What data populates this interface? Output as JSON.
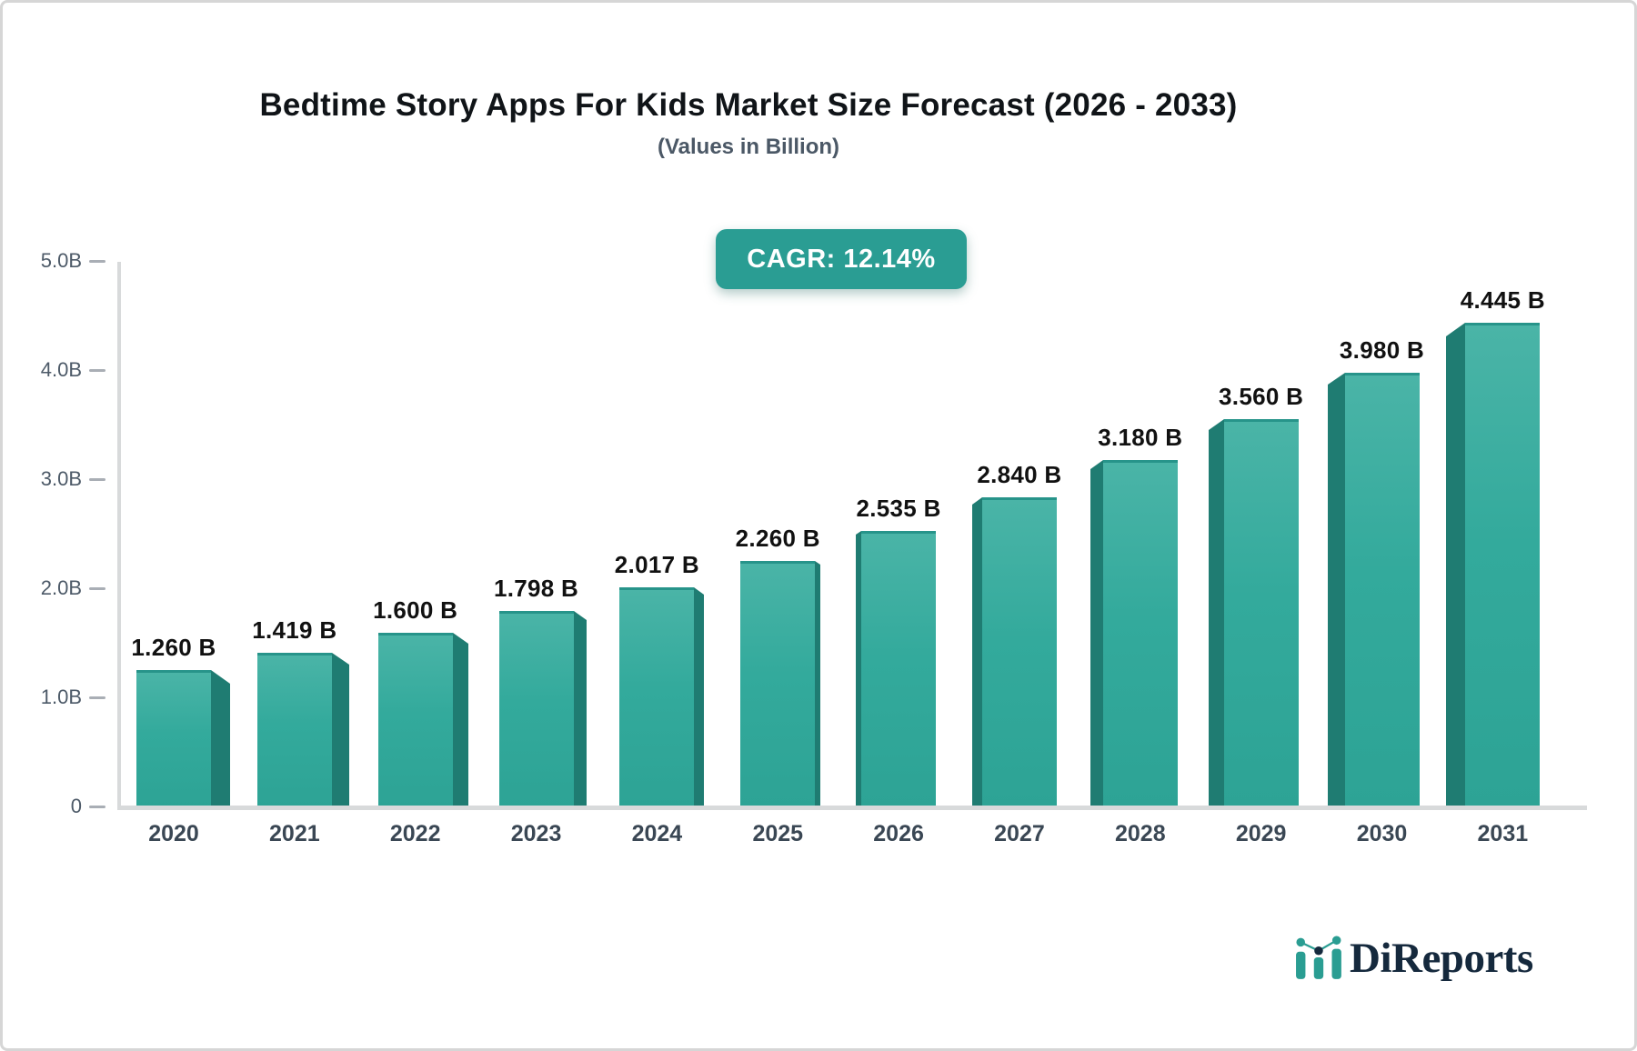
{
  "title": "Bedtime Story Apps For Kids Market Size Forecast (2026 - 2033)",
  "subtitle": "(Values in Billion)",
  "badge": {
    "label": "CAGR: 12.14%",
    "bg_color": "#2a9d93"
  },
  "logo": {
    "text": "DiReports",
    "icon": "bar-line-chart-icon",
    "navy": "#15293d",
    "teal": "#2a9d92"
  },
  "chart_data": {
    "type": "bar",
    "title": "Bedtime Story Apps For Kids Market Size Forecast (2026 - 2033)",
    "subtitle": "(Values in Billion)",
    "categories": [
      "2020",
      "2021",
      "2022",
      "2023",
      "2024",
      "2025",
      "2026",
      "2027",
      "2028",
      "2029",
      "2030",
      "2031"
    ],
    "values": [
      1.26,
      1.419,
      1.6,
      1.798,
      2.017,
      2.26,
      2.535,
      2.84,
      3.18,
      3.56,
      3.98,
      4.445
    ],
    "value_labels": [
      "1.260 B",
      "1.419 B",
      "1.600 B",
      "1.798 B",
      "2.017 B",
      "2.260 B",
      "2.535 B",
      "2.840 B",
      "3.180 B",
      "3.560 B",
      "3.980 B",
      "4.445 B"
    ],
    "xlabel": "",
    "ylabel": "",
    "ylim": [
      0,
      5
    ],
    "ytick_labels": [
      "0",
      "1.0B",
      "2.0B",
      "3.0B",
      "4.0B",
      "5.0B"
    ],
    "grid": false,
    "legend": false,
    "bar_face_color": "#33aa9c",
    "bar_face_top_color": "#4ab4a7",
    "bar_side_color": "#1f7c72",
    "axis_color": "#d8dadb"
  }
}
